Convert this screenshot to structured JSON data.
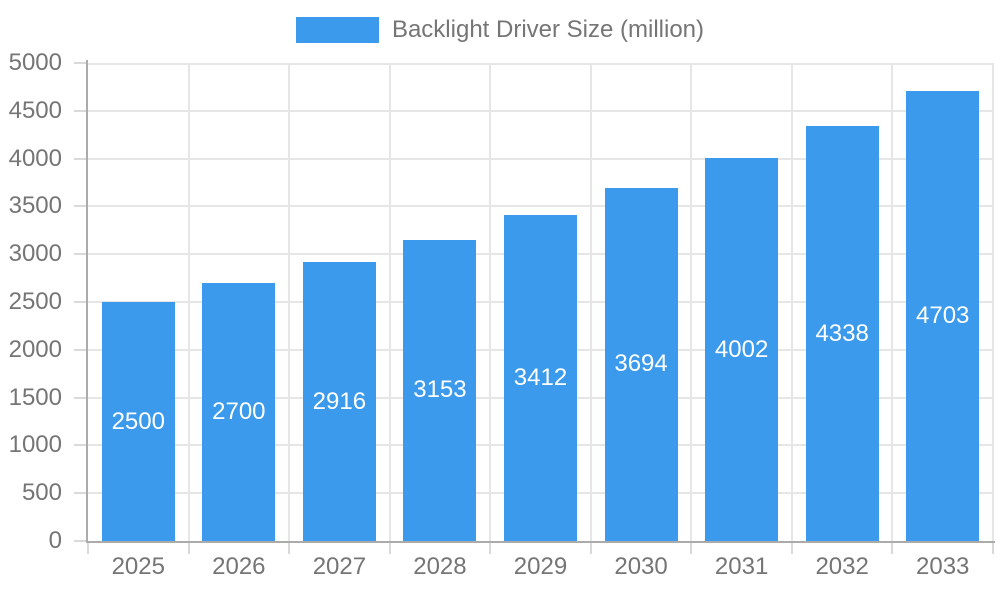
{
  "chart_data": {
    "type": "bar",
    "title": "",
    "legend": "Backlight Driver Size (million)",
    "legend_position": "top-center",
    "categories": [
      "2025",
      "2026",
      "2027",
      "2028",
      "2029",
      "2030",
      "2031",
      "2032",
      "2033"
    ],
    "series": [
      {
        "name": "Backlight Driver Size (million)",
        "values": [
          2500,
          2700,
          2916,
          3153,
          3412,
          3694,
          4002,
          4338,
          4703
        ],
        "value_labels": [
          "2500",
          "2700",
          "2916",
          "3153",
          "3412",
          "3694",
          "4002",
          "4338",
          "4703"
        ]
      }
    ],
    "xlabel": "",
    "ylabel": "",
    "ylim": [
      0,
      5000
    ],
    "ytick_step": 500,
    "ytick_labels": [
      "0",
      "500",
      "1000",
      "1500",
      "2000",
      "2500",
      "3000",
      "3500",
      "4000",
      "4500",
      "5000"
    ],
    "grid": "both",
    "bar_labels_inside": true,
    "colors": {
      "bar": "#3b9aec",
      "bar_label_text": "#ffffff",
      "axis_label_text": "#757575",
      "legend_text": "#757575",
      "grid_line": "#e6e6e6",
      "axis_line": "#ababab",
      "background": "#ffffff"
    }
  }
}
